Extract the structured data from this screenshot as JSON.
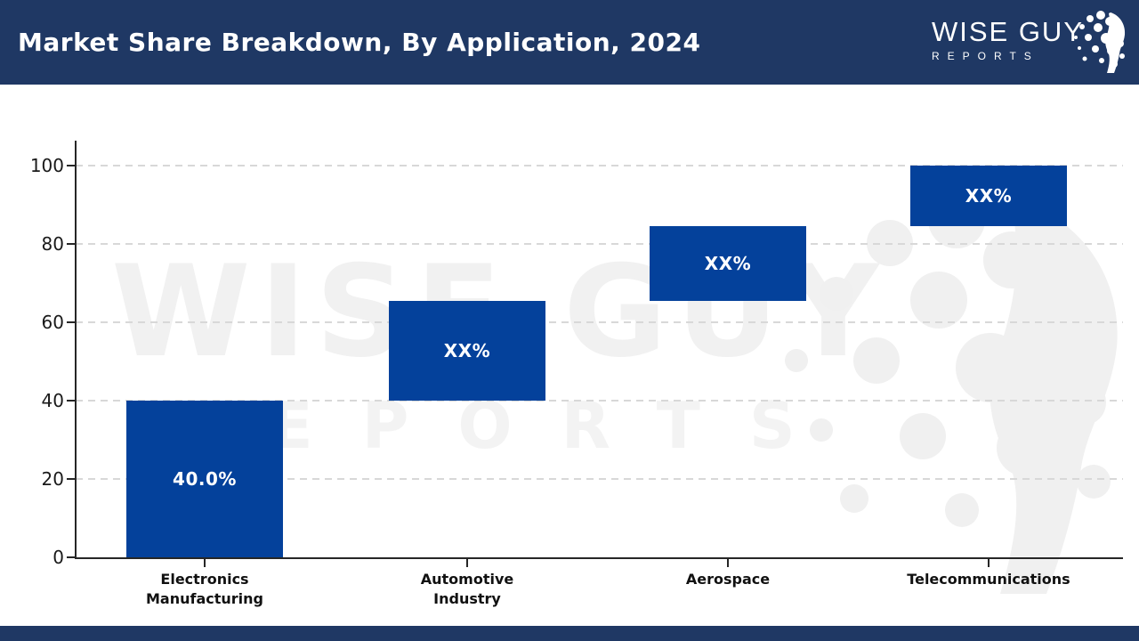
{
  "header": {
    "title": "Market Share Breakdown, By Application, 2024",
    "bg_color": "#1f3864",
    "logo": {
      "line1": "WISE GUY",
      "line2": "REPORTS"
    }
  },
  "watermark": {
    "line1": "WISE GUY",
    "line2": "REPORTS"
  },
  "chart_data": {
    "type": "bar",
    "variant": "waterfall",
    "title": "Market Share Breakdown, By Application, 2024",
    "categories": [
      "Electronics Manufacturing",
      "Automotive Industry",
      "Aerospace",
      "Telecommunications"
    ],
    "category_label_lines": [
      [
        "Electronics",
        "Manufacturing"
      ],
      [
        "Automotive",
        "Industry"
      ],
      [
        "Aerospace"
      ],
      [
        "Telecommunications"
      ]
    ],
    "segments": [
      {
        "category": "Electronics Manufacturing",
        "start": 0,
        "end": 40,
        "value": 40,
        "label": "40.0%"
      },
      {
        "category": "Automotive Industry",
        "start": 40,
        "end": 65.5,
        "value": 25.5,
        "label": "XX%"
      },
      {
        "category": "Aerospace",
        "start": 65.5,
        "end": 84.5,
        "value": 19,
        "label": "XX%"
      },
      {
        "category": "Telecommunications",
        "start": 84.5,
        "end": 100,
        "value": 15.5,
        "label": "XX%"
      }
    ],
    "yticks": [
      0,
      20,
      40,
      60,
      80,
      100
    ],
    "ylim": [
      0,
      106
    ],
    "xlabel": "",
    "ylabel": "",
    "grid": "horizontal-dashed",
    "legend": "none",
    "bar_color": "#04419b",
    "bar_label_color": "#ffffff"
  },
  "footer": {
    "bg_color": "#1f3864"
  }
}
